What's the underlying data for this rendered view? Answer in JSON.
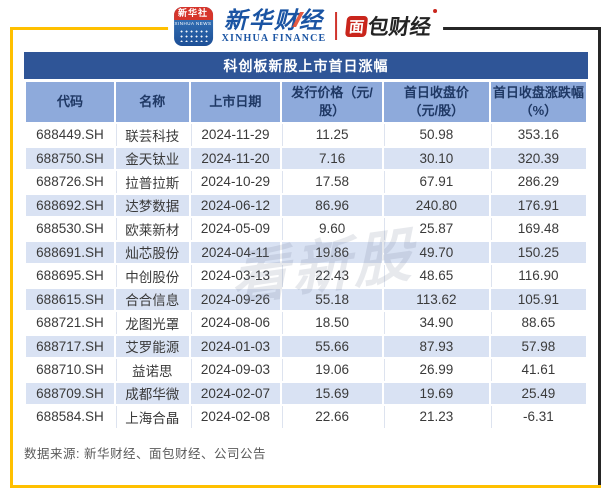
{
  "brand": {
    "xinhua_icon": {
      "line1": "新华社",
      "line2": "XINHUA NEWS"
    },
    "xinhua_logo": {
      "cn": "新华财经",
      "en": "XINHUA FINANCE"
    },
    "bread_logo": {
      "box_char": "面",
      "rest": "包财经"
    }
  },
  "watermark": "看新股",
  "footer": "数据来源: 新华财经、面包财经、公司公告",
  "colors": {
    "title_bar": "#2F5597",
    "header_bg": "#8EAADB",
    "row_alt": "#D9E2F3",
    "header_text": "#1F3864",
    "frame_yellow": "#FFC000",
    "frame_dark": "#262626",
    "accent_red": "#C9251C"
  },
  "chart_data": {
    "type": "table",
    "title": "科创板新股上市首日涨幅",
    "columns": [
      "代码",
      "名称",
      "上市日期",
      "发行价格（元/\n股）",
      "首日收盘价\n（元/股）",
      "首日收盘涨跌幅\n（%）"
    ],
    "rows": [
      [
        "688449.SH",
        "联芸科技",
        "2024-11-29",
        "11.25",
        "50.98",
        "353.16"
      ],
      [
        "688750.SH",
        "金天钛业",
        "2024-11-20",
        "7.16",
        "30.10",
        "320.39"
      ],
      [
        "688726.SH",
        "拉普拉斯",
        "2024-10-29",
        "17.58",
        "67.91",
        "286.29"
      ],
      [
        "688692.SH",
        "达梦数据",
        "2024-06-12",
        "86.96",
        "240.80",
        "176.91"
      ],
      [
        "688530.SH",
        "欧莱新材",
        "2024-05-09",
        "9.60",
        "25.87",
        "169.48"
      ],
      [
        "688691.SH",
        "灿芯股份",
        "2024-04-11",
        "19.86",
        "49.70",
        "150.25"
      ],
      [
        "688695.SH",
        "中创股份",
        "2024-03-13",
        "22.43",
        "48.65",
        "116.90"
      ],
      [
        "688615.SH",
        "合合信息",
        "2024-09-26",
        "55.18",
        "113.62",
        "105.91"
      ],
      [
        "688721.SH",
        "龙图光罩",
        "2024-08-06",
        "18.50",
        "34.90",
        "88.65"
      ],
      [
        "688717.SH",
        "艾罗能源",
        "2024-01-03",
        "55.66",
        "87.93",
        "57.98"
      ],
      [
        "688710.SH",
        "益诺思",
        "2024-09-03",
        "19.06",
        "26.99",
        "41.61"
      ],
      [
        "688709.SH",
        "成都华微",
        "2024-02-07",
        "15.69",
        "19.69",
        "25.49"
      ],
      [
        "688584.SH",
        "上海合晶",
        "2024-02-08",
        "22.66",
        "21.23",
        "-6.31"
      ]
    ],
    "source": "数据来源: 新华财经、面包财经、公司公告"
  }
}
